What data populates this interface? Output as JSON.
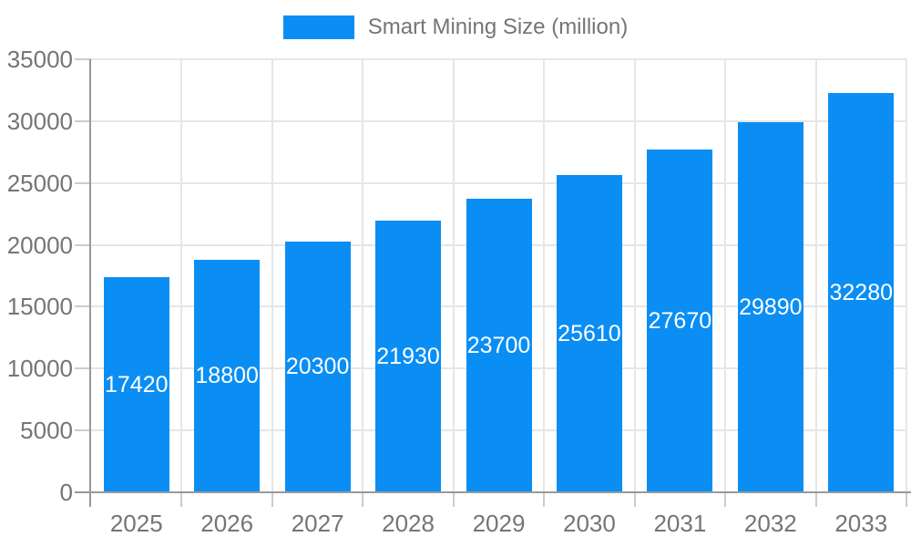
{
  "legend": {
    "label": "Smart Mining Size (million)"
  },
  "colors": {
    "bar": "#0a8ef4",
    "axis": "#999999",
    "grid": "#e6e6e6",
    "tick": "#cccccc",
    "text_muted": "#757575",
    "bar_label": "#ffffff",
    "background": "#ffffff"
  },
  "chart_data": {
    "type": "bar",
    "series_name": "Smart Mining Size (million)",
    "categories": [
      "2025",
      "2026",
      "2027",
      "2028",
      "2029",
      "2030",
      "2031",
      "2032",
      "2033"
    ],
    "values": [
      17420,
      18800,
      20300,
      21930,
      23700,
      25610,
      27670,
      29890,
      32280
    ],
    "ylim": [
      0,
      35000
    ],
    "yticks": [
      0,
      5000,
      10000,
      15000,
      20000,
      25000,
      30000,
      35000
    ],
    "grid": true,
    "legend_position": "top",
    "bar_labels_inside": true,
    "bar_label_valign": "middle"
  }
}
